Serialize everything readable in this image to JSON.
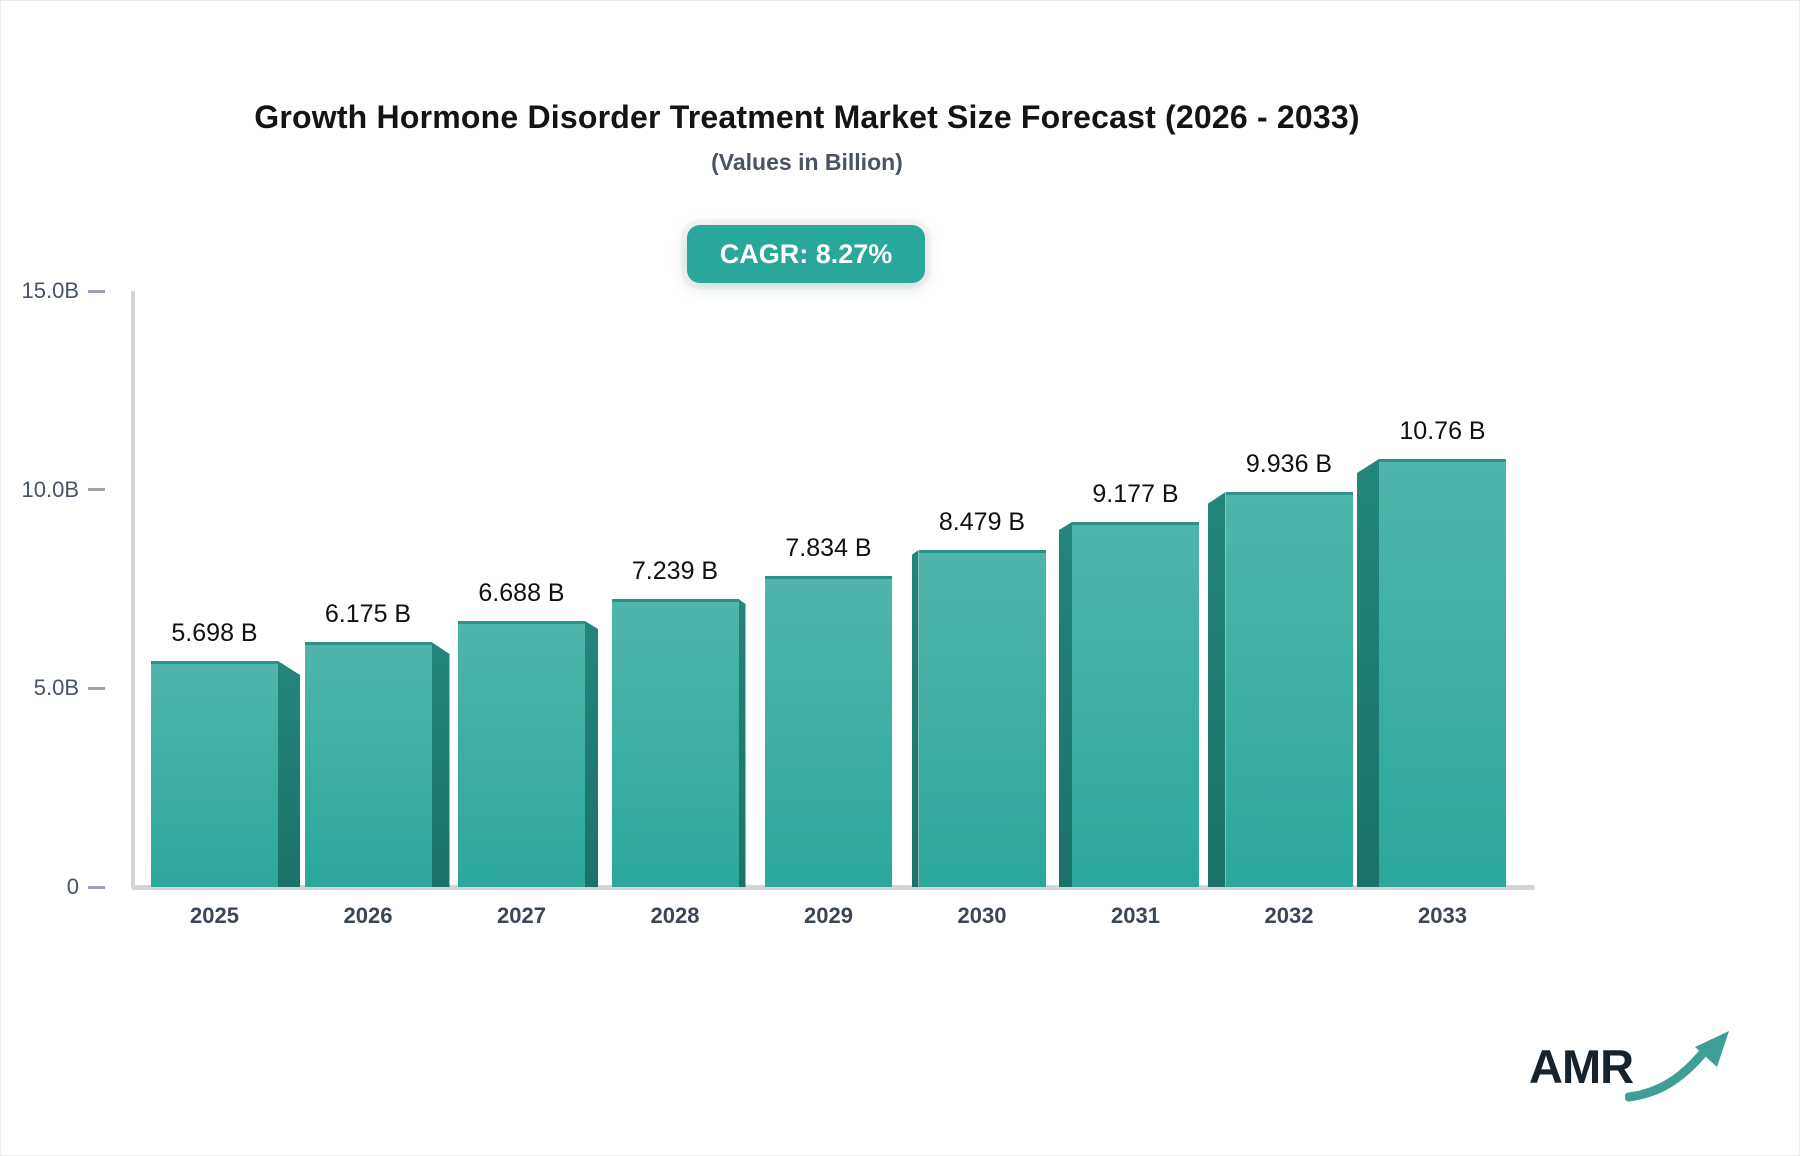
{
  "header": {
    "title": "Growth Hormone Disorder Treatment Market Size Forecast (2026 - 2033)",
    "subtitle": "(Values in Billion)",
    "badge_label": "CAGR: 8.27%"
  },
  "chart_data": {
    "type": "bar",
    "title": "Growth Hormone Disorder Treatment Market Size Forecast (2026 - 2033)",
    "subtitle": "(Values in Billion)",
    "categories": [
      "2025",
      "2026",
      "2027",
      "2028",
      "2029",
      "2030",
      "2031",
      "2032",
      "2033"
    ],
    "values": [
      5.698,
      6.175,
      6.688,
      7.239,
      7.834,
      8.479,
      9.177,
      9.936,
      10.76
    ],
    "value_labels": [
      "5.698 B",
      "6.175 B",
      "6.688 B",
      "7.239 B",
      "7.834 B",
      "8.479 B",
      "9.177 B",
      "9.936 B",
      "10.76 B"
    ],
    "xlabel": "",
    "ylabel": "",
    "ylim": [
      0,
      15
    ],
    "yticks": [
      {
        "label": "15.0B",
        "value": 15
      },
      {
        "label": "10.0B",
        "value": 10
      },
      {
        "label": "5.0B",
        "value": 5
      },
      {
        "label": "0",
        "value": 0
      }
    ],
    "grid": false,
    "legend": false,
    "annotation": "CAGR: 8.27%"
  },
  "colors": {
    "badge_bg": "#2aa79b",
    "bar_face_top": "#50b5aa",
    "bar_face_bottom": "#2ba89a",
    "bar_side_top": "#23867b",
    "bar_side_bottom": "#1b7268",
    "axis_line": "#d2d6dc",
    "tick_dash": "#98a2b3",
    "tick_text": "#475467",
    "logo_text": "#16232d",
    "logo_arrow": "#3f9e96"
  },
  "logo": {
    "text": "AMR"
  }
}
